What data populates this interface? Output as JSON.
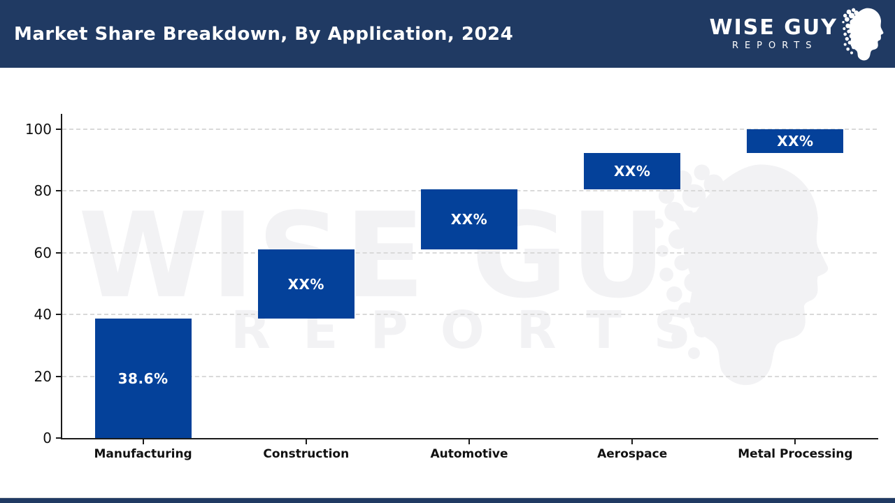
{
  "header": {
    "title": "Market Share Breakdown, By Application, 2024",
    "brand_line1": "WISE GUY",
    "brand_line2": "REPORTS",
    "bg_color": "#203A63"
  },
  "watermark": {
    "line1": "WISE GUY",
    "line2": "REPORTS"
  },
  "chart_data": {
    "type": "bar",
    "subtype": "floating-waterfall",
    "title": "Market Share Breakdown, By Application, 2024",
    "categories": [
      "Manufacturing",
      "Construction",
      "Automotive",
      "Aerospace",
      "Metal Processing"
    ],
    "segments": [
      {
        "category": "Manufacturing",
        "start": 0,
        "end": 38.6,
        "label": "38.6%"
      },
      {
        "category": "Construction",
        "start": 38.6,
        "end": 61.0,
        "label": "XX%"
      },
      {
        "category": "Automotive",
        "start": 61.0,
        "end": 80.4,
        "label": "XX%"
      },
      {
        "category": "Aerospace",
        "start": 80.4,
        "end": 92.3,
        "label": "XX%"
      },
      {
        "category": "Metal Processing",
        "start": 92.3,
        "end": 100,
        "label": "XX%"
      }
    ],
    "y_ticks": [
      0,
      20,
      40,
      60,
      80,
      100
    ],
    "ylim": [
      0,
      105
    ],
    "xlabel": "",
    "ylabel": "",
    "grid": "horizontal-dashed",
    "bar_color": "#04419A",
    "bar_label_color": "#ffffff",
    "axis_color": "#1a1a1a",
    "grid_color": "#d9d9d9"
  }
}
